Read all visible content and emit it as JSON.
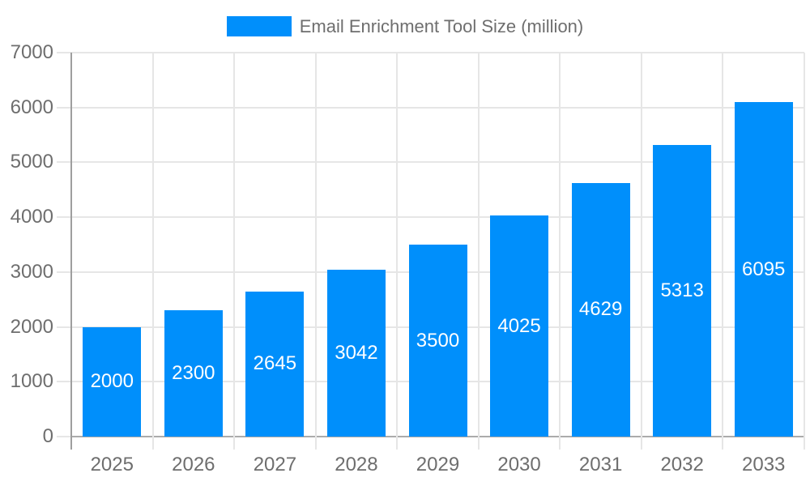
{
  "legend": {
    "label": "Email Enrichment Tool Size (million)"
  },
  "chart_data": {
    "type": "bar",
    "title": "Email Enrichment Tool Size (million)",
    "categories": [
      "2025",
      "2026",
      "2027",
      "2028",
      "2029",
      "2030",
      "2031",
      "2032",
      "2033"
    ],
    "values": [
      2000,
      2300,
      2645,
      3042,
      3500,
      4025,
      4629,
      5313,
      6095
    ],
    "value_labels": [
      "2000",
      "2300",
      "2645",
      "3042",
      "3500",
      "4025",
      "4629",
      "5313",
      "6095"
    ],
    "series": [
      {
        "name": "Email Enrichment Tool Size (million)",
        "values": [
          2000,
          2300,
          2645,
          3042,
          3500,
          4025,
          4629,
          5313,
          6095
        ]
      }
    ],
    "xlabel": "",
    "ylabel": "",
    "ylim": [
      0,
      7000
    ],
    "yticks": [
      0,
      1000,
      2000,
      3000,
      4000,
      5000,
      6000,
      7000
    ],
    "grid": true,
    "legend_position": "top",
    "colors": {
      "bar": "#008FFB",
      "bar_label": "#FFFFFF",
      "grid": "#E6E6E6",
      "y_axis_line": "#9E9E9E",
      "x_baseline": "#ABABAB",
      "tick_text": "#6E6E6E",
      "legend_text": "#6E6E6E",
      "background": "#FFFFFF"
    }
  }
}
